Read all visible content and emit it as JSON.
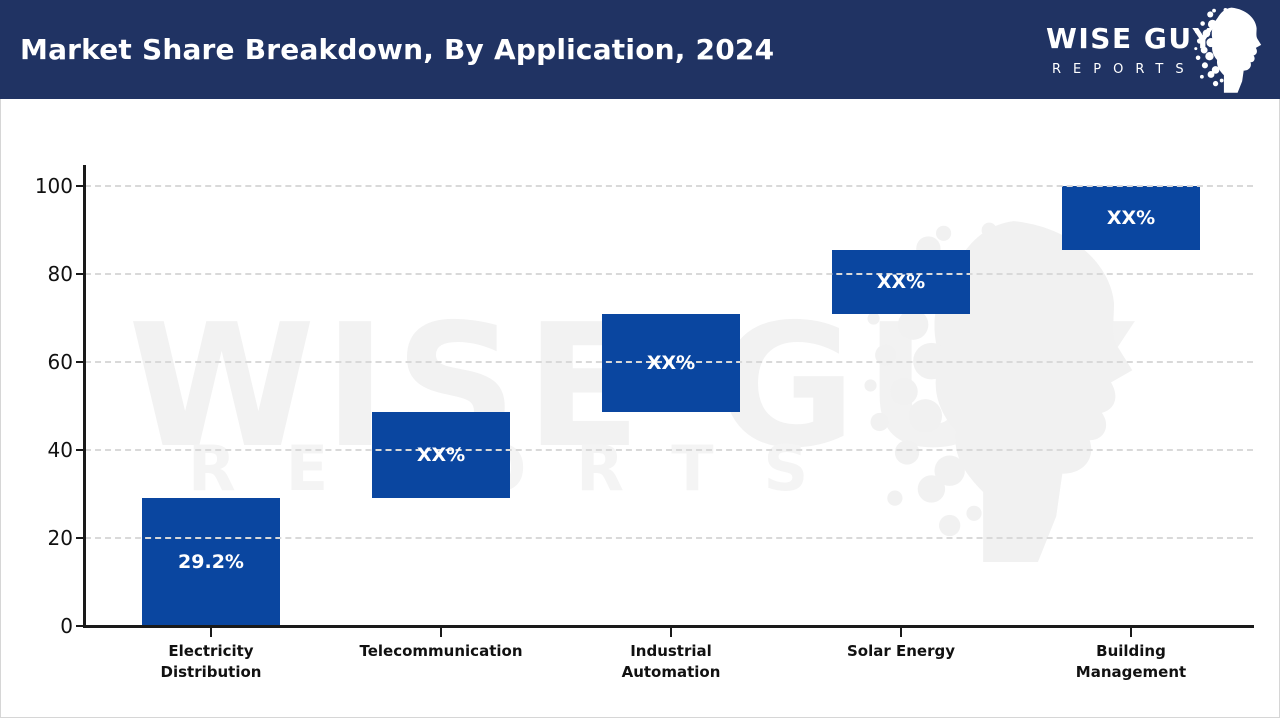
{
  "header": {
    "title": "Market Share Breakdown, By Application, 2024",
    "logo": {
      "wordmark": "WISE GUY",
      "subtext": "REPORTS"
    }
  },
  "watermark": {
    "wordmark": "WISE GUY",
    "subtext": "REPORTS"
  },
  "chart_data": {
    "type": "bar",
    "subtype": "waterfall",
    "title": "Market Share Breakdown, By Application, 2024",
    "categories": [
      "Electricity Distribution",
      "Telecommunication",
      "Industrial Automation",
      "Solar Energy",
      "Building Management"
    ],
    "category_lines": [
      [
        "Electricity",
        "Distribution"
      ],
      [
        "Telecommunication"
      ],
      [
        "Industrial",
        "Automation"
      ],
      [
        "Solar Energy"
      ],
      [
        "Building",
        "Management"
      ]
    ],
    "series": [
      {
        "name": "Market Share (%)",
        "segments": [
          {
            "category": "Electricity Distribution",
            "start": 0,
            "end": 29.2,
            "label": "29.2%"
          },
          {
            "category": "Telecommunication",
            "start": 29.2,
            "end": 48.6,
            "label": "XX%"
          },
          {
            "category": "Industrial Automation",
            "start": 48.6,
            "end": 70.8,
            "label": "XX%"
          },
          {
            "category": "Solar Energy",
            "start": 70.8,
            "end": 85.4,
            "label": "XX%"
          },
          {
            "category": "Building Management",
            "start": 85.4,
            "end": 100,
            "label": "XX%"
          }
        ]
      }
    ],
    "ylim": [
      0,
      100
    ],
    "yticks": [
      0,
      20,
      40,
      60,
      80,
      100
    ],
    "grid": true,
    "legend": false,
    "xlabel": "",
    "ylabel": "",
    "bar_color": "#0a46a0",
    "bar_label_color": "#ffffff",
    "grid_color": "#d9d9d9",
    "axis_color": "#1a1a1a",
    "header_bg_color": "#203363",
    "watermark_color": "#f2f2f2"
  }
}
